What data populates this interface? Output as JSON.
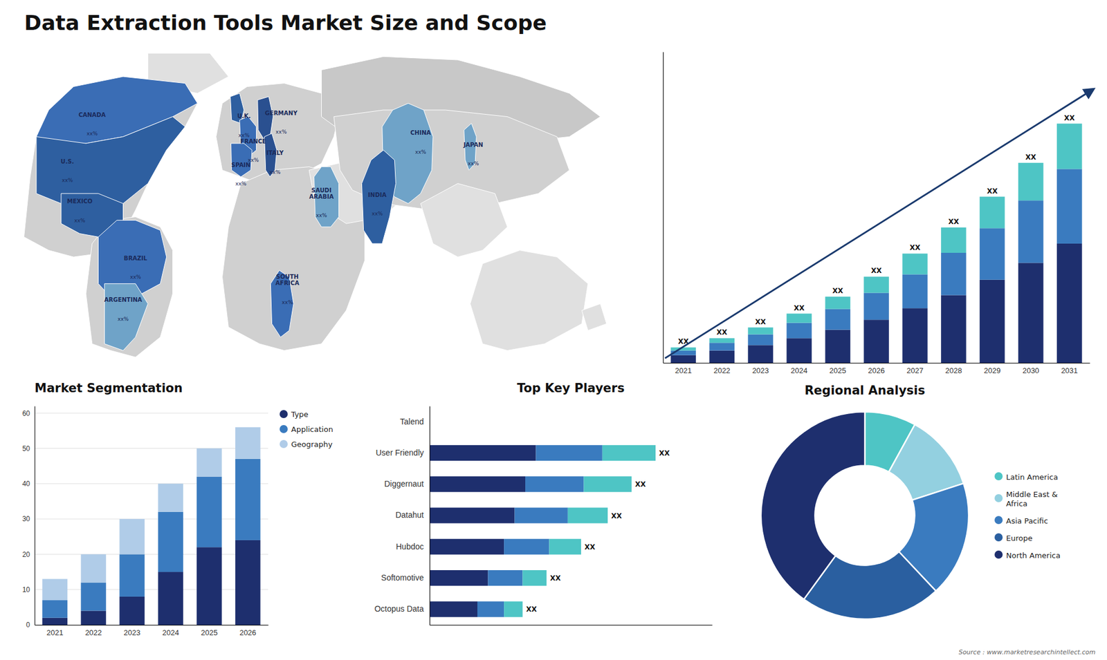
{
  "title": "Data Extraction Tools Market Size and Scope",
  "annotations": [
    "Source : www.marketresearchintellect.com"
  ],
  "chart_data": [
    {
      "type": "map",
      "categories": [
        "CANADA",
        "U.S.",
        "MEXICO",
        "BRAZIL",
        "ARGENTINA",
        "U.K.",
        "FRANCE",
        "SPAIN",
        "GERMANY",
        "ITALY",
        "SAUDI\nARABIA",
        "SOUTH\nAFRICA",
        "CHINA",
        "INDIA",
        "JAPAN"
      ],
      "annotations": [
        "xx%",
        "xx%",
        "xx%",
        "xx%",
        "xx%",
        "xx%",
        "xx%",
        "xx%",
        "xx%",
        "xx%",
        "xx%",
        "xx%",
        "xx%",
        "xx%",
        "xx%"
      ]
    },
    {
      "type": "bar",
      "stacked": true,
      "categories": [
        "2021",
        "2022",
        "2023",
        "2024",
        "2025",
        "2026",
        "2027",
        "2028",
        "2029",
        "2030",
        "2031"
      ],
      "series": [
        {
          "color": "#1e2f6e",
          "values": [
            1.0,
            1.6,
            2.3,
            3.2,
            4.3,
            5.6,
            7.1,
            8.8,
            10.8,
            13.0,
            15.5
          ]
        },
        {
          "color": "#3a7bbf",
          "values": [
            0.6,
            1.0,
            1.4,
            2.0,
            2.7,
            3.5,
            4.4,
            5.5,
            6.7,
            8.1,
            9.7
          ]
        },
        {
          "color": "#4ec5c5",
          "values": [
            0.4,
            0.6,
            0.9,
            1.2,
            1.6,
            2.1,
            2.7,
            3.3,
            4.1,
            4.9,
            5.9
          ]
        }
      ],
      "ylim": [
        0,
        40.43
      ],
      "yticks": [],
      "tick_labels": "x",
      "annotations": [
        "XX",
        "XX",
        "XX",
        "XX",
        "XX",
        "XX",
        "XX",
        "XX",
        "XX",
        "XX",
        "XX"
      ]
    },
    {
      "type": "bar",
      "stacked": true,
      "title": "Market Segmentation",
      "categories": [
        "2021",
        "2022",
        "2023",
        "2024",
        "2025",
        "2026"
      ],
      "series": [
        {
          "name": "Type",
          "color": "#1e2f6e",
          "values": [
            2,
            4,
            8,
            15,
            22,
            24
          ]
        },
        {
          "name": "Application",
          "color": "#3a7bbf",
          "values": [
            5,
            8,
            12,
            17,
            20,
            23
          ]
        },
        {
          "name": "Geography",
          "color": "#b0cce8",
          "values": [
            6,
            8,
            10,
            8,
            8,
            9
          ]
        }
      ],
      "ylim": [
        0,
        62
      ],
      "yticks": [
        0,
        10,
        20,
        30,
        40,
        50,
        60
      ],
      "grid": true,
      "legend": "right"
    },
    {
      "type": "bar",
      "orientation": "horizontal",
      "stacked": true,
      "title": "Top Key Players",
      "categories": [
        "Talend",
        "User Friendly",
        "Diggernaut",
        "Datahut",
        "Hubdoc",
        "Softomotive",
        "Octopus Data"
      ],
      "series": [
        {
          "color": "#1e2f6e",
          "values": [
            0,
            4.0,
            3.6,
            3.2,
            2.8,
            2.2,
            1.8
          ]
        },
        {
          "color": "#3a7bbf",
          "values": [
            0,
            2.5,
            2.2,
            2.0,
            1.7,
            1.3,
            1.0
          ]
        },
        {
          "color": "#4ec5c5",
          "values": [
            0,
            2.0,
            1.8,
            1.5,
            1.2,
            0.9,
            0.7
          ]
        }
      ],
      "xlim": [
        0,
        10.625
      ],
      "xticks": [],
      "tick_labels": "y",
      "annotations": [
        "XX",
        "XX",
        "XX",
        "XX",
        "XX",
        "XX"
      ]
    },
    {
      "type": "donut",
      "title": "Regional Analysis",
      "categories": [
        "Latin America",
        "Middle East &\nAfrica",
        "Asia Pacific",
        "Europe",
        "North America"
      ],
      "values": [
        8,
        12,
        18,
        22,
        40
      ],
      "colors": [
        "#4ec5c5",
        "#93d0e0",
        "#3a7bbf",
        "#2a5fa0",
        "#1e2f6e"
      ],
      "legend": "right"
    }
  ]
}
